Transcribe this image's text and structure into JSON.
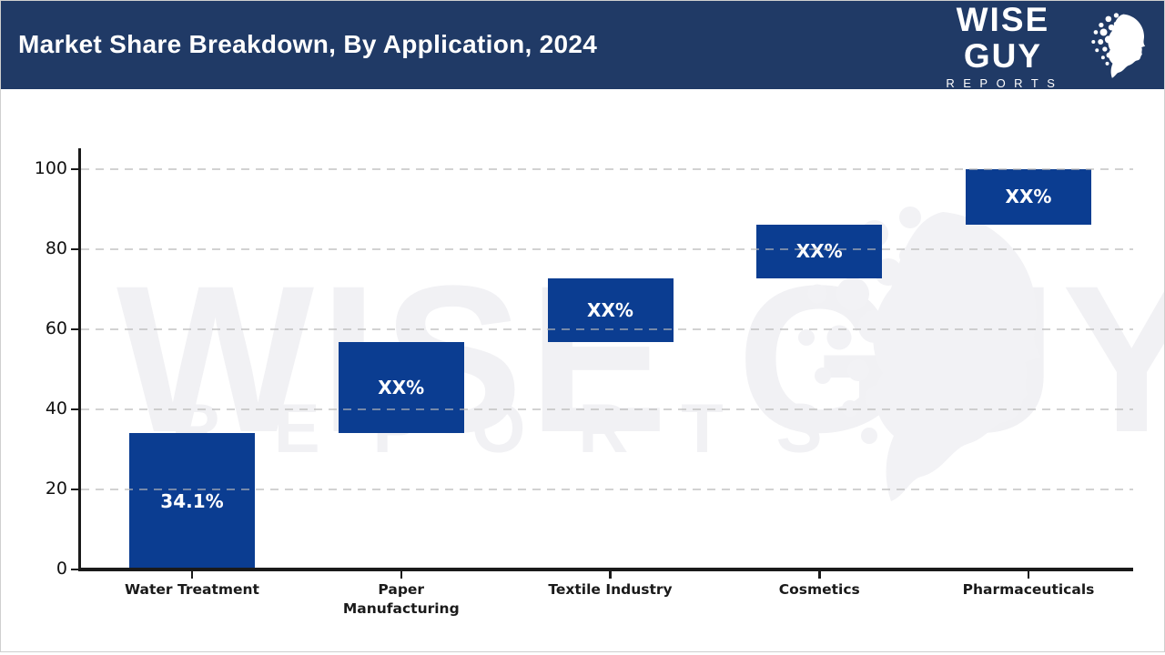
{
  "header": {
    "title": "Market Share Breakdown, By Application, 2024",
    "bg_color": "#203a66"
  },
  "logo": {
    "line1": "WISE GUY",
    "line2": "REPORTS",
    "icon": "dotted-head-profile"
  },
  "watermark": {
    "line1": "WISE GUY",
    "line2": "REPORTS"
  },
  "chart_data": {
    "type": "bar",
    "subtype": "waterfall",
    "title": "Market Share Breakdown, By Application, 2024",
    "categories": [
      "Water Treatment",
      "Paper Manufacturing",
      "Textile Industry",
      "Cosmetics",
      "Pharmaceuticals"
    ],
    "segments": [
      {
        "category": "Water Treatment",
        "slug": "water-treatment",
        "start": 0,
        "end": 34.1,
        "label": "34.1%"
      },
      {
        "category": "Paper Manufacturing",
        "slug": "paper-manufacturing",
        "start": 34.1,
        "end": 56.9,
        "label": "XX%"
      },
      {
        "category": "Textile Industry",
        "slug": "textile-industry",
        "start": 56.9,
        "end": 72.7,
        "label": "XX%"
      },
      {
        "category": "Cosmetics",
        "slug": "cosmetics",
        "start": 72.8,
        "end": 86.1,
        "label": "XX%"
      },
      {
        "category": "Pharmaceuticals",
        "slug": "pharmaceuticals",
        "start": 86.2,
        "end": 100,
        "label": "XX%"
      }
    ],
    "yticks": [
      0,
      20,
      40,
      60,
      80,
      100
    ],
    "ylim": [
      0,
      105
    ],
    "xlabel": "",
    "ylabel": "",
    "grid": "horizontal-dashed",
    "legend": "none",
    "bar_color": "#0b3d91",
    "bar_label_color": "#ffffff",
    "axis_color": "#1a1a1a"
  }
}
